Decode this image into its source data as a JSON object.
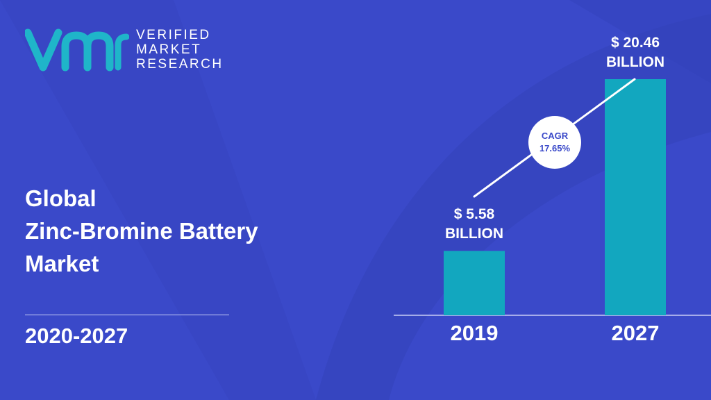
{
  "brand": {
    "logo_line1": "VERIFIED",
    "logo_line2": "MARKET",
    "logo_line3": "RESEARCH"
  },
  "title": {
    "line1": "Global",
    "line2": "Zinc-Bromine Battery",
    "line3": "Market"
  },
  "period": "2020-2027",
  "cagr": {
    "label": "CAGR",
    "value": "17.65%"
  },
  "colors": {
    "background": "#3a49c9",
    "bar": "#12a7bf",
    "logo_teal": "#1fb5c9"
  },
  "chart_data": {
    "type": "bar",
    "categories": [
      "2019",
      "2027"
    ],
    "values": [
      5.58,
      20.46
    ],
    "unit": "USD Billion",
    "value_labels": [
      {
        "line1": "$ 5.58",
        "line2": "BILLION"
      },
      {
        "line1": "$ 20.46",
        "line2": "BILLION"
      }
    ],
    "title": "",
    "xlabel": "",
    "ylabel": ""
  }
}
